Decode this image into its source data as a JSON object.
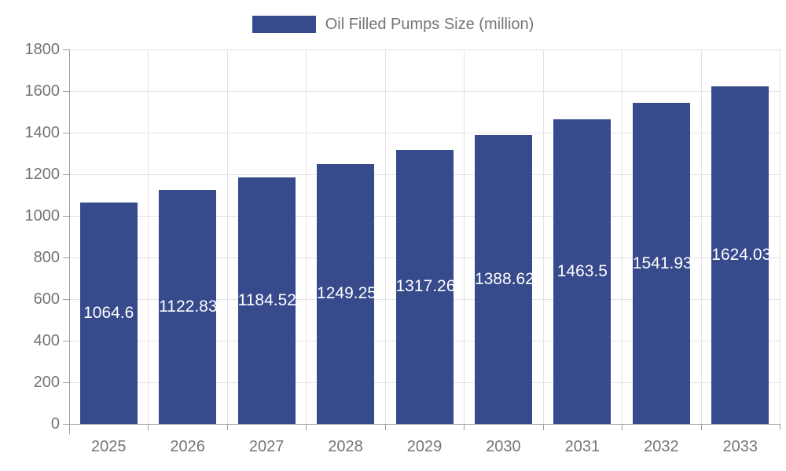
{
  "legend": {
    "label": "Oil Filled Pumps Size (million)"
  },
  "colors": {
    "bar": "#364A8C",
    "gridline": "#e3e3e3",
    "axis": "#9e9e9e",
    "tick_label": "#757575",
    "value_label": "#ffffff",
    "background": "#ffffff"
  },
  "chart_data": {
    "type": "bar",
    "title": "Oil Filled Pumps Size (million)",
    "categories": [
      "2025",
      "2026",
      "2027",
      "2028",
      "2029",
      "2030",
      "2031",
      "2032",
      "2033"
    ],
    "values": [
      1064.6,
      1122.83,
      1184.52,
      1249.25,
      1317.26,
      1388.62,
      1463.5,
      1541.93,
      1624.03
    ],
    "value_labels": [
      "1064.6",
      "1122.83",
      "1184.52",
      "1249.25",
      "1317.26",
      "1388.62",
      "1463.5",
      "1541.93",
      "1624.03"
    ],
    "xlabel": "",
    "ylabel": "",
    "ylim": [
      0,
      1800
    ],
    "yticks": [
      0,
      200,
      400,
      600,
      800,
      1000,
      1200,
      1400,
      1600,
      1800
    ],
    "grid": "horizontal-and-vertical",
    "legend_position": "top-center",
    "value_label_position": "inside-center"
  }
}
